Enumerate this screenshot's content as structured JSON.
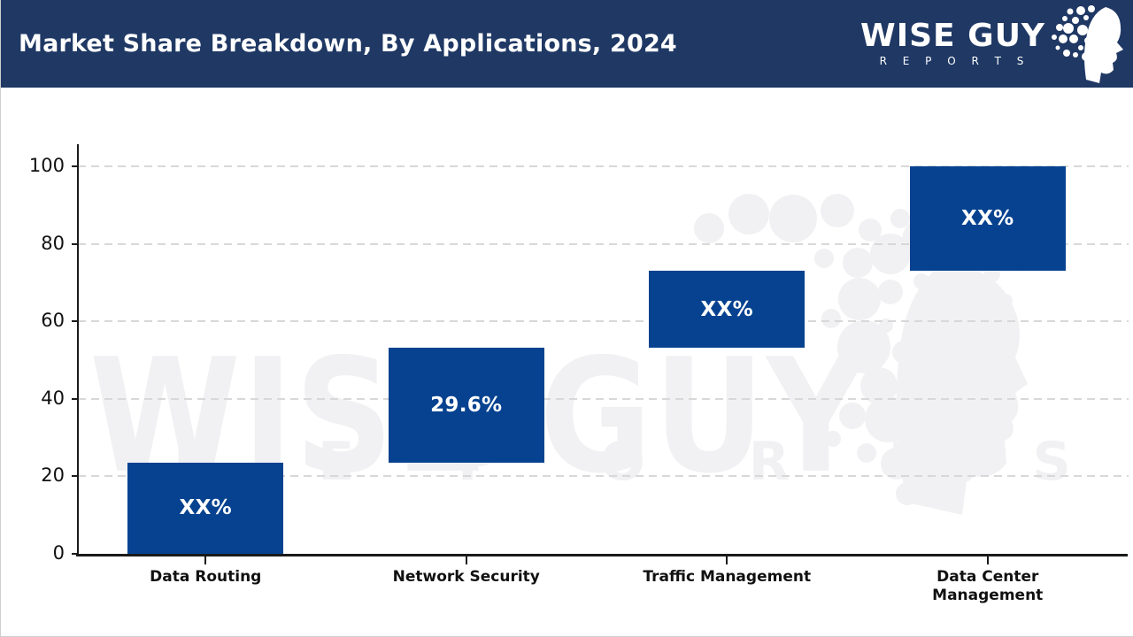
{
  "header": {
    "title": "Market Share Breakdown, By Applications, 2024",
    "logo": {
      "name": "WISE GUY",
      "subtitle": "R E P O R T S"
    }
  },
  "watermark": {
    "line1": "WISE GUY",
    "line2": "R E P O R T S"
  },
  "chart_data": {
    "type": "bar",
    "subtype": "floating-waterfall",
    "title": "Market Share Breakdown, By Applications, 2024",
    "categories": [
      "Data Routing",
      "Network Security",
      "Traffic Management",
      "Data Center Management"
    ],
    "tick_lines": [
      [
        "Data Routing"
      ],
      [
        "Network Security"
      ],
      [
        "Traffic Management"
      ],
      [
        "Data Center",
        "Management"
      ]
    ],
    "segments": [
      {
        "category": "Data Routing",
        "start": 0,
        "end": 23.5,
        "label": "XX%"
      },
      {
        "category": "Network Security",
        "start": 23.5,
        "end": 53.1,
        "label": "29.6%"
      },
      {
        "category": "Traffic Management",
        "start": 53.1,
        "end": 73.0,
        "label": "XX%"
      },
      {
        "category": "Data Center Management",
        "start": 73.0,
        "end": 100,
        "label": "XX%"
      }
    ],
    "yticks": [
      0,
      20,
      40,
      60,
      80,
      100
    ],
    "ylim": [
      0,
      100
    ],
    "grid": true,
    "gridline_style": "dashed",
    "legend": false
  },
  "colors": {
    "header_bg": "#1f3864",
    "bar": "#064290",
    "axis": "#1a1a1a",
    "grid": "#d8d8d8",
    "watermark": "#f1f1f3",
    "title_text": "#ffffff",
    "bar_label_text": "#ffffff"
  }
}
